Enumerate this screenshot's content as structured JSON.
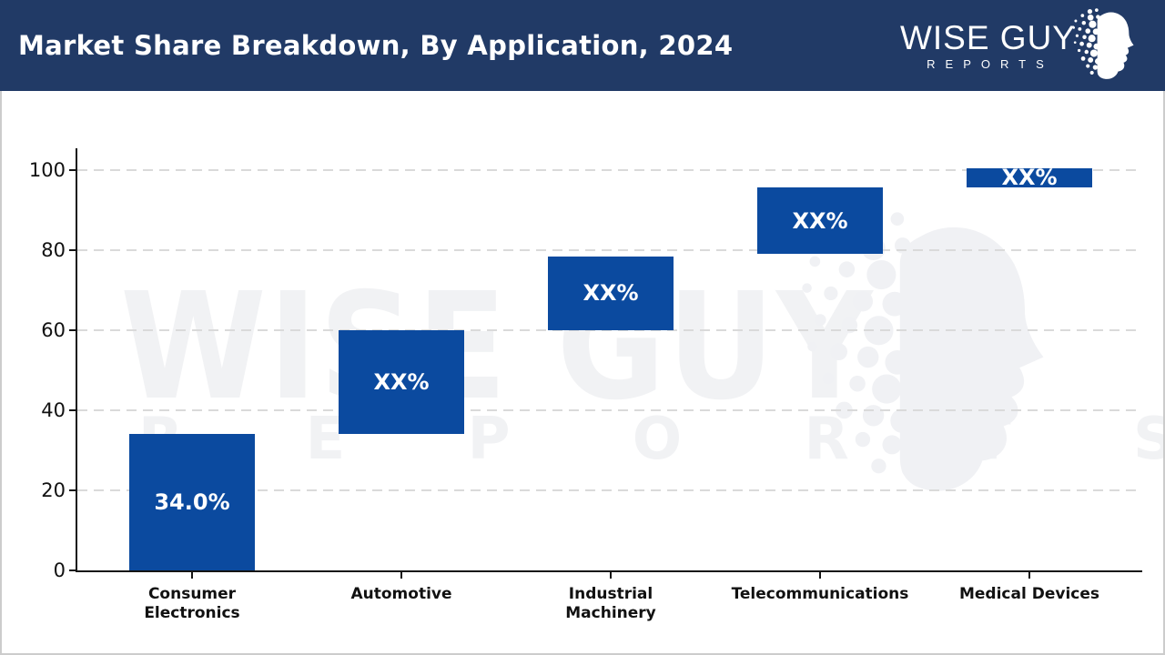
{
  "header": {
    "title": "Market Share Breakdown, By Application, 2024",
    "bg_color": "#213a66",
    "logo": {
      "line1": "WISE GUY",
      "line2": "REPORTS"
    }
  },
  "watermark": {
    "line1": "WISE GUY",
    "line2": "R E P O R T S"
  },
  "chart_data": {
    "type": "bar",
    "subtype": "waterfall-floating-bars",
    "title": "Market Share Breakdown, By Application, 2024",
    "categories": [
      "Consumer\nElectronics",
      "Automotive",
      "Industrial\nMachinery",
      "Telecommunications",
      "Medical Devices"
    ],
    "segments": [
      {
        "category": "Consumer Electronics",
        "start": 0,
        "end": 34,
        "value_label": "34.0%"
      },
      {
        "category": "Automotive",
        "start": 34,
        "end": 60,
        "value_label": "XX%"
      },
      {
        "category": "Industrial Machinery",
        "start": 60,
        "end": 78.5,
        "value_label": "XX%"
      },
      {
        "category": "Telecommunications",
        "start": 79,
        "end": 95.7,
        "value_label": "XX%"
      },
      {
        "category": "Medical Devices",
        "start": 95.7,
        "end": 100.5,
        "value_label": "XX%"
      }
    ],
    "ylim": [
      0,
      100
    ],
    "yticks": [
      0,
      20,
      40,
      60,
      80,
      100
    ],
    "xlabel": "",
    "ylabel": "",
    "grid": true,
    "legend": false,
    "bar_color": "#0b4a9f",
    "value_label_color": "#ffffff",
    "axis_color": "#141414",
    "grid_color": "#dadada"
  }
}
